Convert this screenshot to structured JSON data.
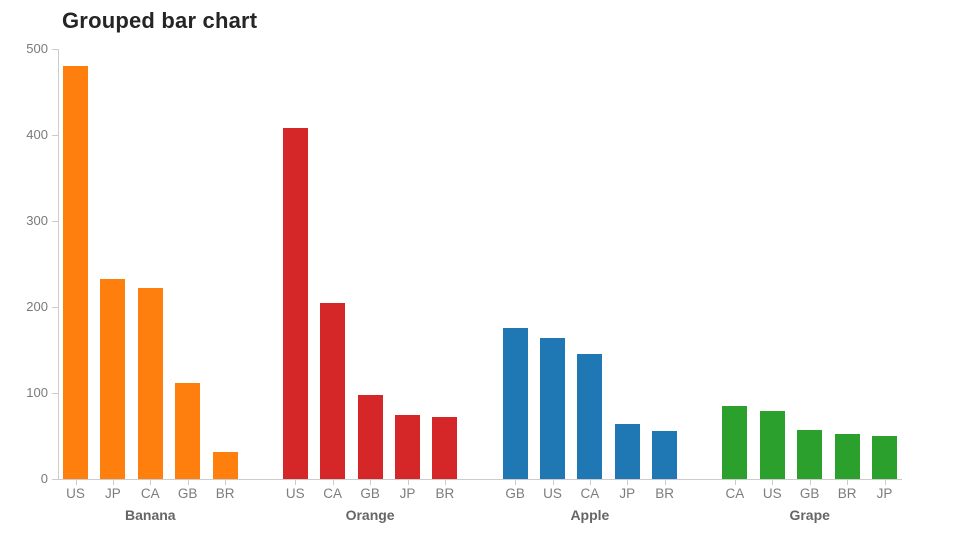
{
  "title": "Grouped bar chart",
  "colors": {
    "banana": "#ff7f0e",
    "orange": "#d62728",
    "apple": "#1f77b4",
    "grape": "#2ca02c",
    "axis": "#cccccc",
    "tick_text": "#7a7a7a",
    "group_text": "#666666",
    "title_text": "#252525",
    "background": "#ffffff"
  },
  "chart_data": {
    "type": "bar",
    "title": "Grouped bar chart",
    "xlabel": "",
    "ylabel": "",
    "ylim": [
      0,
      500
    ],
    "yticks": [
      0,
      100,
      200,
      300,
      400,
      500
    ],
    "grid": false,
    "legend": "none",
    "groups": [
      {
        "label": "Banana",
        "color": "#ff7f0e",
        "categories": [
          "US",
          "JP",
          "CA",
          "GB",
          "BR"
        ],
        "values": [
          480,
          233,
          222,
          112,
          31
        ]
      },
      {
        "label": "Orange",
        "color": "#d62728",
        "categories": [
          "US",
          "CA",
          "GB",
          "JP",
          "BR"
        ],
        "values": [
          408,
          205,
          98,
          75,
          72
        ]
      },
      {
        "label": "Apple",
        "color": "#1f77b4",
        "categories": [
          "GB",
          "US",
          "CA",
          "JP",
          "BR"
        ],
        "values": [
          176,
          164,
          145,
          64,
          56
        ]
      },
      {
        "label": "Grape",
        "color": "#2ca02c",
        "categories": [
          "CA",
          "US",
          "GB",
          "BR",
          "JP"
        ],
        "values": [
          85,
          79,
          57,
          52,
          50
        ]
      }
    ]
  }
}
